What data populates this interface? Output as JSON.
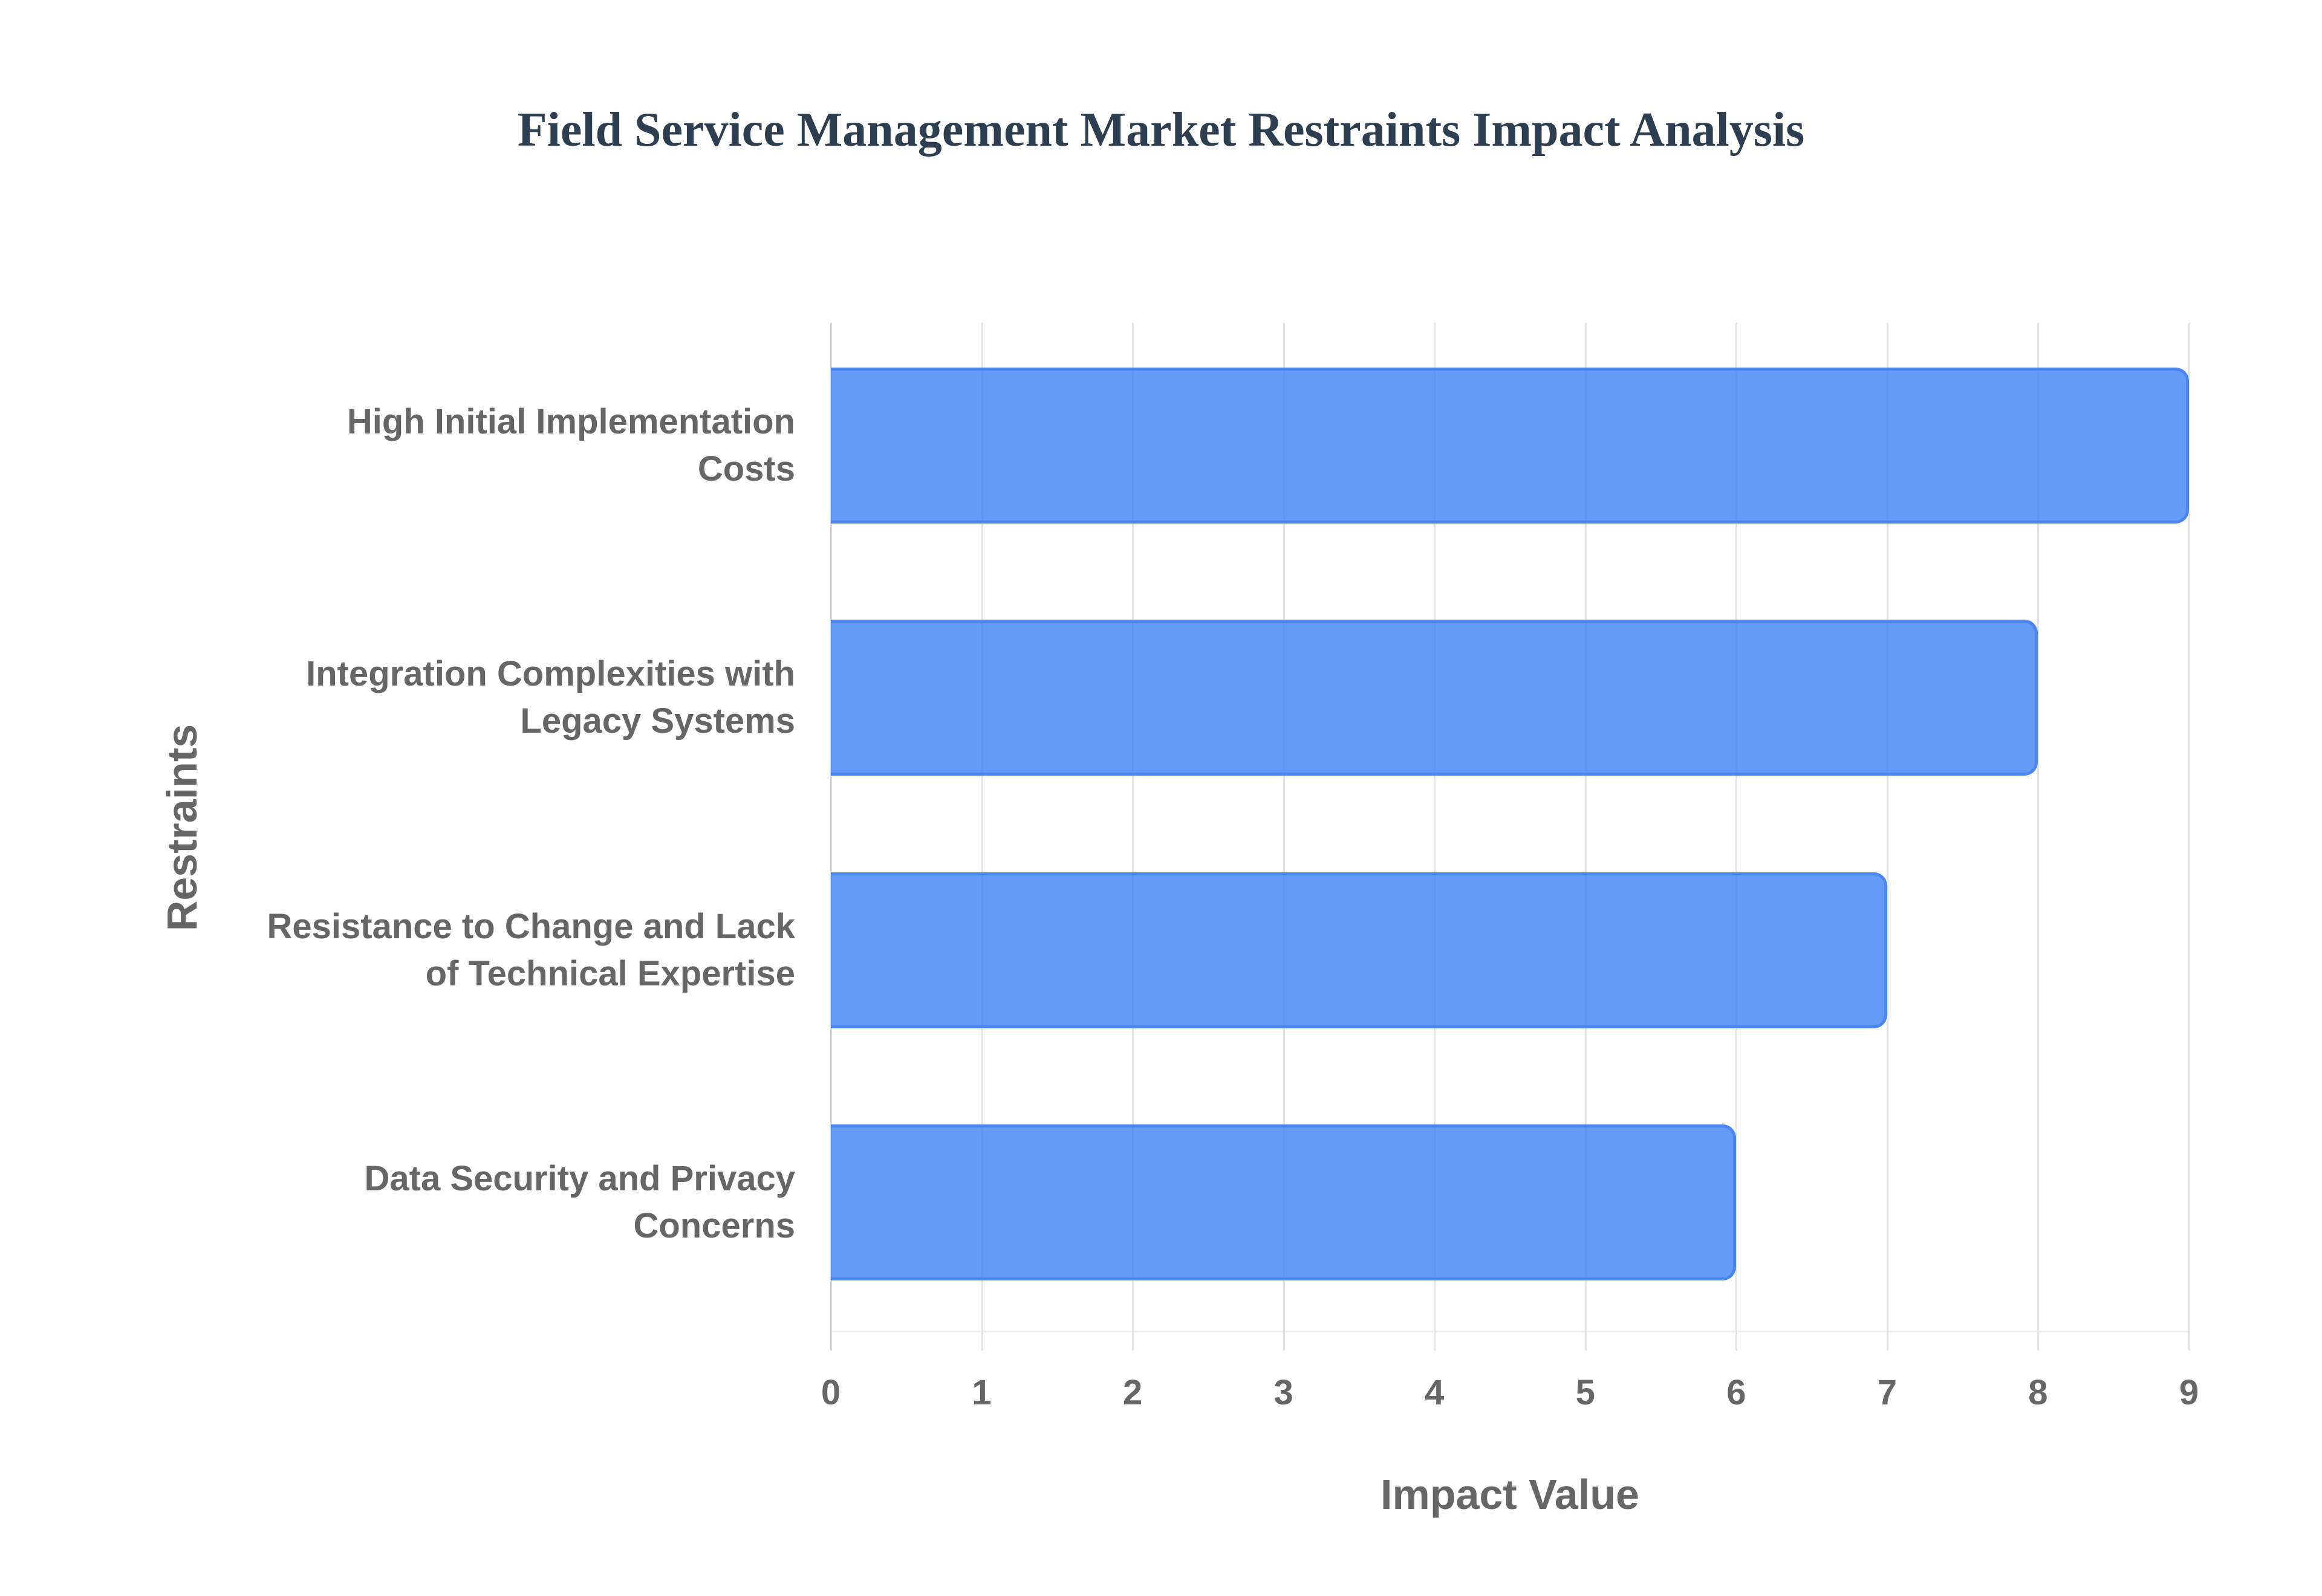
{
  "chart_data": {
    "type": "bar",
    "orientation": "horizontal",
    "title": "Field Service Management Market Restraints Impact Analysis",
    "xlabel": "Impact Value",
    "ylabel": "Restraints",
    "categories": [
      "High Initial Implementation Costs",
      "Integration Complexities with Legacy Systems",
      "Resistance to Change and Lack of Technical Expertise",
      "Data Security and Privacy Concerns"
    ],
    "category_lines": [
      [
        "High Initial Implementation",
        "Costs"
      ],
      [
        "Integration Complexities with",
        "Legacy Systems"
      ],
      [
        "Resistance to Change and Lack",
        "of Technical Expertise"
      ],
      [
        "Data Security and Privacy",
        "Concerns"
      ]
    ],
    "values": [
      9,
      8,
      7,
      6
    ],
    "xlim": [
      0,
      9
    ],
    "xticks": [
      "0",
      "1",
      "2",
      "3",
      "4",
      "5",
      "6",
      "7",
      "8",
      "9"
    ],
    "grid": true,
    "legend": null,
    "colors": {
      "bar_fill": "#6199F3",
      "bar_border": "#4A86EE",
      "title": "#2C3E50",
      "axis_text": "#666666",
      "grid": "#E4E4E4"
    }
  }
}
